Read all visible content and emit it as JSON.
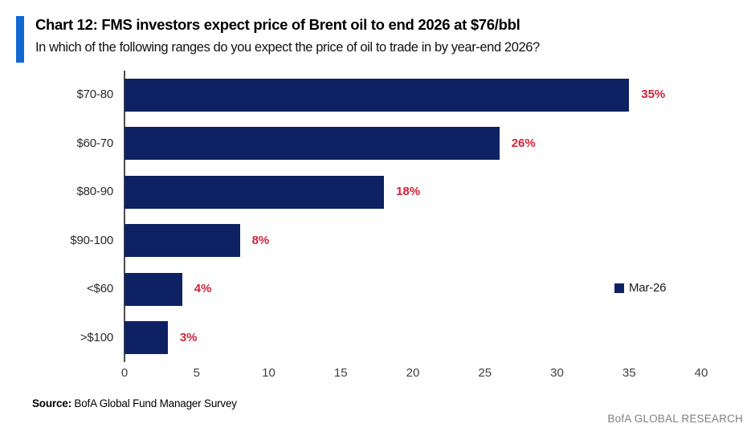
{
  "header": {
    "title": "Chart 12: FMS investors expect price of Brent oil to end 2026 at $76/bbl",
    "subtitle": "In which of the following ranges do you expect the price of oil to trade in by year-end 2026?"
  },
  "chart_data": {
    "type": "bar",
    "orientation": "horizontal",
    "title": "Chart 12: FMS investors expect price of Brent oil to end 2026 at $76/bbl",
    "subtitle": "In which of the following ranges do you expect the price of oil to trade in by year-end 2026?",
    "categories": [
      "$70-80",
      "$60-70",
      "$80-90",
      "$90-100",
      "<$60",
      ">$100"
    ],
    "series": [
      {
        "name": "Mar-26",
        "values": [
          35,
          26,
          18,
          8,
          4,
          3
        ]
      }
    ],
    "value_labels": [
      "35%",
      "26%",
      "18%",
      "8%",
      "4%",
      "3%"
    ],
    "xlabel": "",
    "ylabel": "",
    "xlim": [
      0,
      40
    ],
    "xticks": [
      0,
      5,
      10,
      15,
      20,
      25,
      30,
      35,
      40
    ],
    "grid": false,
    "legend": {
      "entries": [
        "Mar-26"
      ],
      "position": "middle-right"
    },
    "bar_color": "#0e2263",
    "value_label_color": "#d22339"
  },
  "legend": {
    "label": "Mar-26"
  },
  "footer": {
    "source_label": "Source:",
    "source_text": " BofA Global Fund Manager Survey",
    "brand": "BofA GLOBAL RESEARCH"
  },
  "colors": {
    "accent_bar": "#1268d3",
    "bar": "#0e2263",
    "value_label": "#d22339",
    "axis": "#4d4d4d",
    "tick_text": "#404040",
    "brand_text": "#7f7f7f"
  }
}
